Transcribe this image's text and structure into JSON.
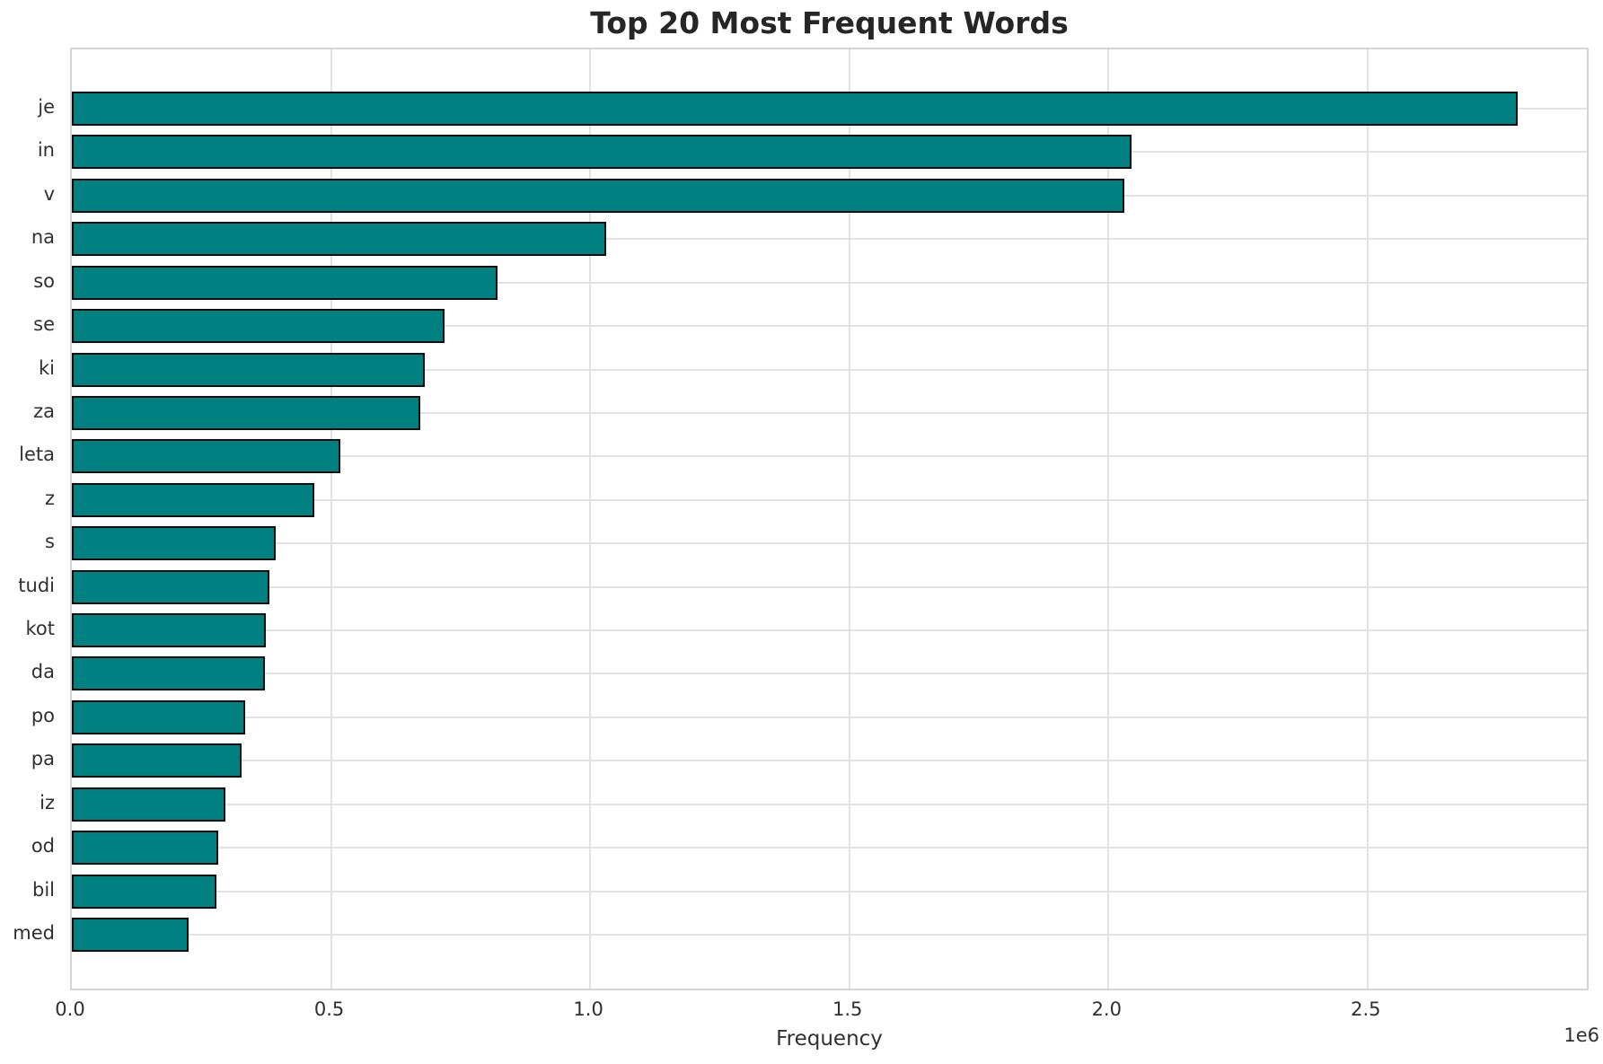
{
  "title": "Top 20 Most Frequent Words",
  "chart_data": {
    "type": "bar",
    "orientation": "horizontal",
    "title": "Top 20 Most Frequent Words",
    "xlabel": "Frequency",
    "ylabel": "",
    "categories": [
      "je",
      "in",
      "v",
      "na",
      "so",
      "se",
      "ki",
      "za",
      "leta",
      "z",
      "s",
      "tudi",
      "kot",
      "da",
      "po",
      "pa",
      "iz",
      "od",
      "bil",
      "med"
    ],
    "values": [
      2790000,
      2045000,
      2031000,
      1031000,
      821000,
      719000,
      681000,
      672000,
      518000,
      467000,
      393000,
      381000,
      374000,
      372000,
      334000,
      327000,
      297000,
      282000,
      279000,
      225000
    ],
    "xlim": [
      0,
      2930000
    ],
    "x_ticks": [
      0,
      500000,
      1000000,
      1500000,
      2000000,
      2500000
    ],
    "x_tick_labels": [
      "0.0",
      "0.5",
      "1.0",
      "1.5",
      "2.0",
      "2.5"
    ],
    "x_offset_label": "1e6",
    "grid": true,
    "legend": false,
    "bar_color": "#008080",
    "bar_edge_color": "#0d0d0d",
    "grid_color": "#e2e2e2",
    "text_color": "#303030"
  }
}
